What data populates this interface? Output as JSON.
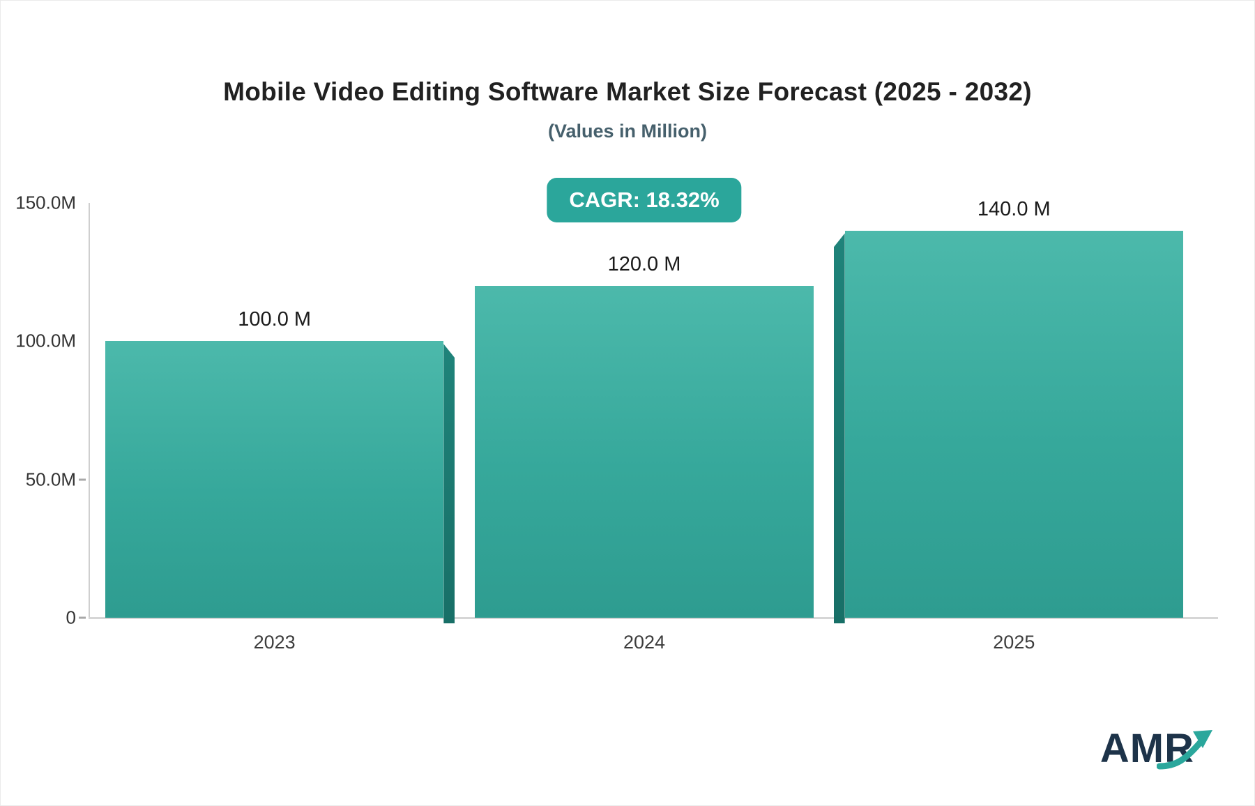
{
  "chart_data": {
    "type": "bar",
    "title": "Mobile Video Editing Software Market Size Forecast (2025 - 2032)",
    "subtitle": "(Values in Million)",
    "categories": [
      "2023",
      "2024",
      "2025"
    ],
    "values": [
      100.0,
      120.0,
      140.0
    ],
    "value_labels": [
      "100.0 M",
      "120.0 M",
      "140.0 M"
    ],
    "ylim": [
      0,
      150
    ],
    "yticks": [
      {
        "label": "150.0M",
        "value": 150,
        "dash": false
      },
      {
        "label": "100.0M",
        "value": 100,
        "dash": false
      },
      {
        "label": "50.0M",
        "value": 50,
        "dash": true
      },
      {
        "label": "0",
        "value": 0,
        "dash": true
      }
    ],
    "grid": false,
    "legend": "none",
    "bar_sides": [
      "right",
      "none",
      "left"
    ]
  },
  "badge": {
    "label": "CAGR: 18.32%"
  },
  "logo": {
    "text": "AMR"
  },
  "colors": {
    "bar_top": "#4cb9ab",
    "bar_bottom": "#2e9c90",
    "bar_side": "#1f837a",
    "badge_bg": "#2ba69b",
    "title": "#212121",
    "subtitle": "#46606c",
    "axis": "#cfcfcf",
    "logo_navy": "#1d3349",
    "logo_teal": "#2aa79c"
  }
}
